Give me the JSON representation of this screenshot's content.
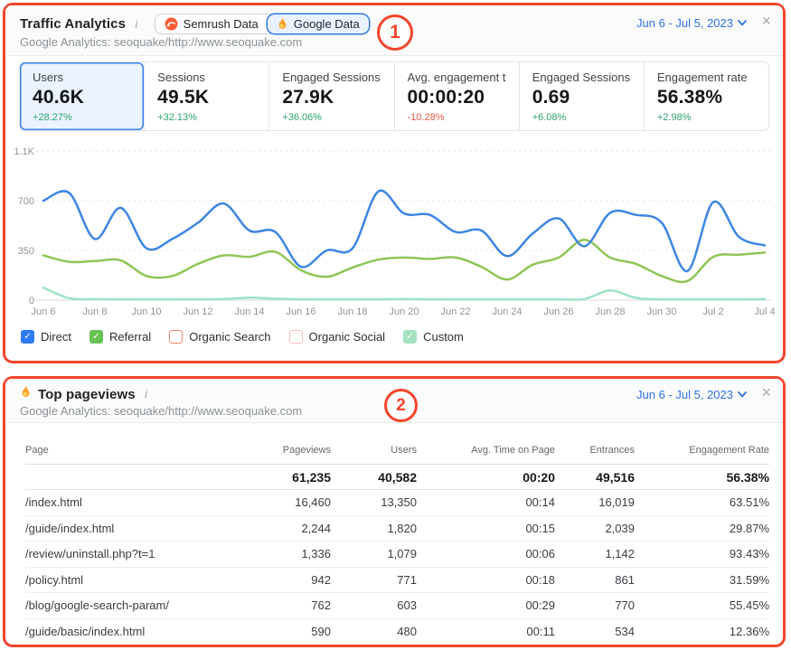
{
  "icons": {
    "info": "i",
    "close": "×",
    "check": "✓"
  },
  "annotations": {
    "badge1": "1",
    "badge2": "2",
    "color": "#f3452c"
  },
  "panel1": {
    "title": "Traffic Analytics",
    "source": "Google Analytics: seoquake/http://www.seoquake.com",
    "date_range": "Jun 6 - Jul 5, 2023",
    "tabs": [
      {
        "label": "Semrush Data",
        "active": false,
        "icon": "semrush-logo-icon"
      },
      {
        "label": "Google Data",
        "active": true,
        "icon": "flame-icon"
      }
    ],
    "metrics": [
      {
        "label": "Users",
        "value": "40.6K",
        "delta": "+28.27%",
        "trend": "up",
        "selected": true
      },
      {
        "label": "Sessions",
        "value": "49.5K",
        "delta": "+32.13%",
        "trend": "up",
        "selected": false
      },
      {
        "label": "Engaged Sessions",
        "value": "27.9K",
        "delta": "+36.06%",
        "trend": "up",
        "selected": false
      },
      {
        "label": "Avg. engagement ti...",
        "value": "00:00:20",
        "delta": "-10.28%",
        "trend": "down",
        "selected": false
      },
      {
        "label": "Engaged Sessions P...",
        "value": "0.69",
        "delta": "+6.08%",
        "trend": "up",
        "selected": false
      },
      {
        "label": "Engagement rate",
        "value": "56.38%",
        "delta": "+2.98%",
        "trend": "up",
        "selected": false
      }
    ],
    "legend": [
      {
        "label": "Direct",
        "checked": true,
        "color": "#2f7bf6"
      },
      {
        "label": "Referral",
        "checked": true,
        "color": "#67c155"
      },
      {
        "label": "Organic Search",
        "checked": false,
        "color": "#f5876d"
      },
      {
        "label": "Organic Social",
        "checked": false,
        "color": "#f8c0b4"
      },
      {
        "label": "Custom",
        "checked": true,
        "color": "#a4e2c2"
      }
    ]
  },
  "chart_data": {
    "type": "line",
    "x": [
      "Jun 6",
      "Jun 7",
      "Jun 8",
      "Jun 9",
      "Jun 10",
      "Jun 11",
      "Jun 12",
      "Jun 13",
      "Jun 14",
      "Jun 15",
      "Jun 16",
      "Jun 17",
      "Jun 18",
      "Jun 19",
      "Jun 20",
      "Jun 21",
      "Jun 22",
      "Jun 23",
      "Jun 24",
      "Jun 25",
      "Jun 26",
      "Jun 27",
      "Jun 28",
      "Jun 29",
      "Jun 30",
      "Jul 1",
      "Jul 2",
      "Jul 3",
      "Jul 4"
    ],
    "x_tick_labels": [
      "Jun 6",
      "Jun 8",
      "Jun 10",
      "Jun 12",
      "Jun 14",
      "Jun 16",
      "Jun 18",
      "Jun 20",
      "Jun 22",
      "Jun 24",
      "Jun 26",
      "Jun 28",
      "Jun 30",
      "Jul 2",
      "Jul 4"
    ],
    "y_ticks": [
      0,
      350,
      700,
      1050
    ],
    "y_tick_labels": [
      "0",
      "350",
      "700",
      "1.1K"
    ],
    "ylim": [
      0,
      1050
    ],
    "grid": "horizontal-dashed",
    "legend_position": "bottom",
    "series": [
      {
        "name": "Direct",
        "color": "#3d85e4",
        "values": [
          700,
          755,
          430,
          650,
          365,
          430,
          545,
          680,
          490,
          480,
          235,
          350,
          365,
          765,
          610,
          600,
          480,
          490,
          310,
          470,
          575,
          380,
          615,
          600,
          545,
          205,
          690,
          445,
          385
        ]
      },
      {
        "name": "Referral",
        "color": "#8fc556",
        "values": [
          315,
          270,
          275,
          280,
          170,
          170,
          255,
          315,
          305,
          340,
          210,
          165,
          230,
          285,
          300,
          290,
          300,
          235,
          145,
          250,
          300,
          425,
          300,
          255,
          170,
          135,
          305,
          320,
          335
        ]
      },
      {
        "name": "Custom",
        "color": "#9fe3c4",
        "values": [
          88,
          14,
          7,
          6,
          5,
          5,
          6,
          8,
          18,
          10,
          6,
          5,
          5,
          6,
          8,
          6,
          5,
          5,
          5,
          5,
          5,
          8,
          68,
          16,
          6,
          5,
          5,
          5,
          7
        ]
      }
    ]
  },
  "panel2": {
    "title": "Top pageviews",
    "source": "Google Analytics: seoquake/http://www.seoquake.com",
    "date_range": "Jun 6 - Jul 5, 2023",
    "table": {
      "columns": [
        "Page",
        "Pageviews",
        "Users",
        "Avg. Time on Page",
        "Entrances",
        "Engagement Rate"
      ],
      "totals": [
        "",
        "61,235",
        "40,582",
        "00:20",
        "49,516",
        "56.38%"
      ],
      "rows": [
        [
          "/index.html",
          "16,460",
          "13,350",
          "00:14",
          "16,019",
          "63.51%"
        ],
        [
          "/guide/index.html",
          "2,244",
          "1,820",
          "00:15",
          "2,039",
          "29.87%"
        ],
        [
          "/review/uninstall.php?t=1",
          "1,336",
          "1,079",
          "00:06",
          "1,142",
          "93.43%"
        ],
        [
          "/policy.html",
          "942",
          "771",
          "00:18",
          "861",
          "31.59%"
        ],
        [
          "/blog/google-search-param/",
          "762",
          "603",
          "00:29",
          "770",
          "55.45%"
        ],
        [
          "/guide/basic/index.html",
          "590",
          "480",
          "00:11",
          "534",
          "12.36%"
        ]
      ]
    }
  }
}
